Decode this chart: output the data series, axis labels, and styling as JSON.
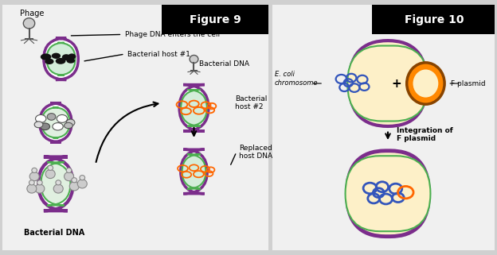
{
  "fig9_title": "Figure 9",
  "fig10_title": "Figure 10",
  "bg_color": "#f0f0f0",
  "panel_bg": "#f5f5f5",
  "title_bg": "#000000",
  "title_fg": "#ffffff",
  "cell_fill_light": "#e8f5e9",
  "cell_fill_white": "#ffffff",
  "cell_border_purple": "#7b2d8b",
  "cell_inner_green": "#4caf50",
  "orange_dna": "#ff6600",
  "blue_dna": "#3355bb",
  "black_dna": "#111111",
  "wheat_fill": "#fdf0c8",
  "labels": {
    "phage": "Phage",
    "phage_dna": "Phage DNA enters the cell",
    "bacterial_host1": "Bacterial host #1",
    "bacterial_dna_label": "Bacterial DNA",
    "bacterial_host2": "Bacterial\nhost #2",
    "replaced_host": "Replaced\nhost DNA",
    "ecoli": "E. coli\nchromosome",
    "fplasmid": "F plasmid",
    "integration": "Integration of\nF plasmid"
  }
}
